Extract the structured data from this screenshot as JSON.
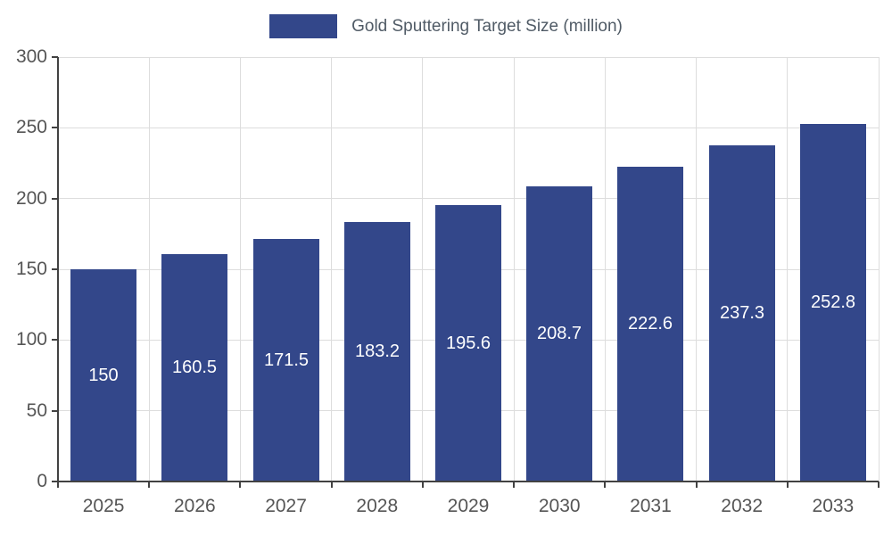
{
  "chart_data": {
    "type": "bar",
    "title": "Gold Sputtering Target Size (million)",
    "categories": [
      "2025",
      "2026",
      "2027",
      "2028",
      "2029",
      "2030",
      "2031",
      "2032",
      "2033"
    ],
    "values": [
      150,
      160.5,
      171.5,
      183.2,
      195.6,
      208.7,
      222.6,
      237.3,
      252.8
    ],
    "value_labels": [
      "150",
      "160.5",
      "171.5",
      "183.2",
      "195.6",
      "208.7",
      "222.6",
      "237.3",
      "252.8"
    ],
    "xlabel": "",
    "ylabel": "",
    "ylim": [
      0,
      300
    ],
    "yticks": [
      0,
      50,
      100,
      150,
      200,
      250,
      300
    ],
    "ytick_labels": [
      "0",
      "50",
      "100",
      "150",
      "200",
      "250",
      "300"
    ],
    "grid": "on",
    "legend_position": "top-center",
    "colors": {
      "bar": "#33478a",
      "grid": "#dddddd",
      "axis": "#424242",
      "tick_label": "#555555",
      "value_label": "#ffffff",
      "legend_text": "#505b66",
      "background": "#ffffff"
    }
  }
}
